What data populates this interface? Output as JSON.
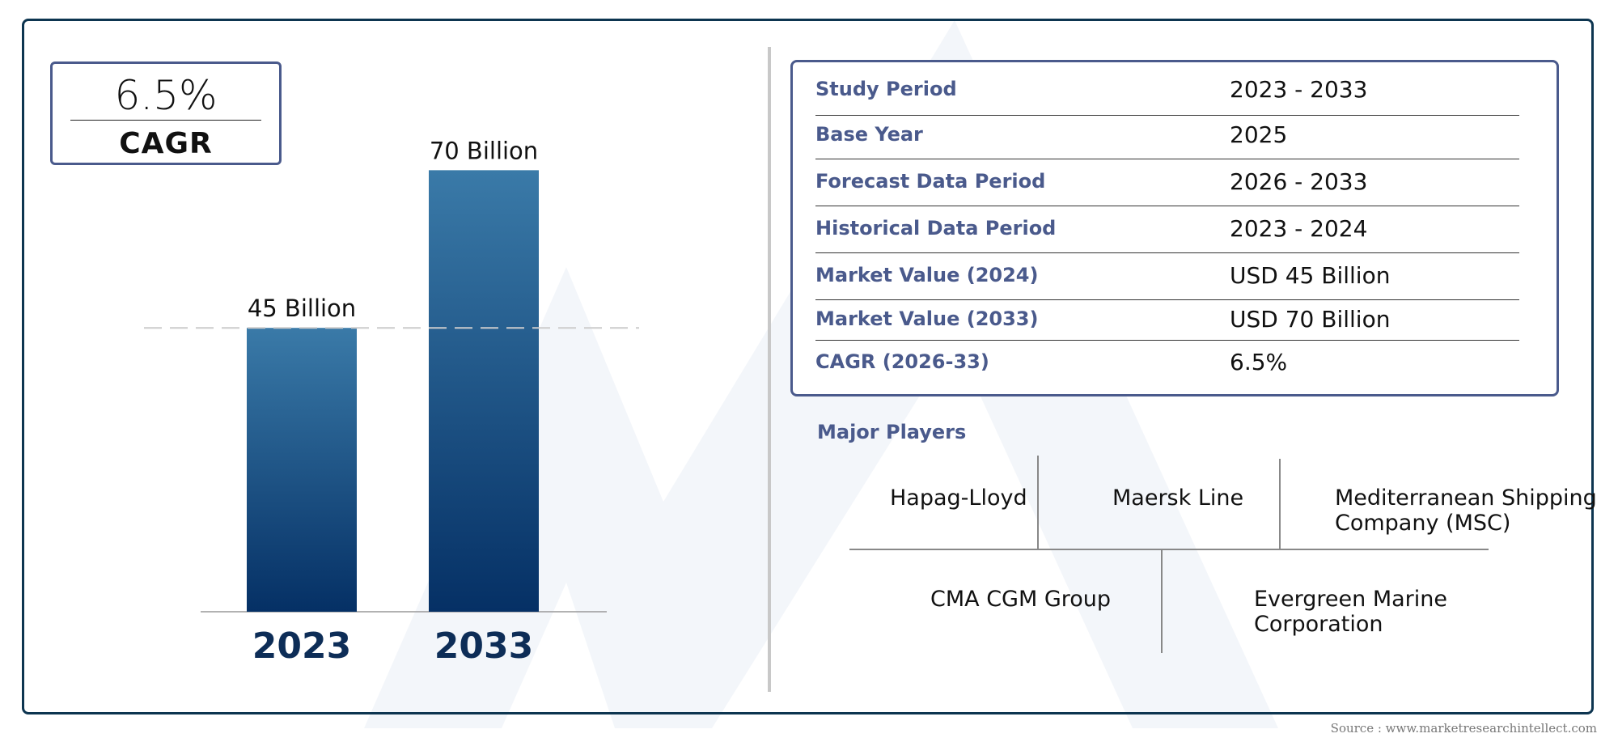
{
  "cagr_badge": {
    "value": "6.5%",
    "label": "CAGR"
  },
  "chart_data": {
    "type": "bar",
    "categories": [
      "2023",
      "2033"
    ],
    "values": [
      45,
      70
    ],
    "data_labels": [
      "45 Billion",
      "70 Billion"
    ],
    "title": "",
    "xlabel": "",
    "ylabel": "",
    "ylim": [
      0,
      78
    ],
    "reference_line": 45,
    "grid": false,
    "legend": "none",
    "colors": {
      "bar_top": "#3a7aa8",
      "bar_bottom": "#053065",
      "axis_label": "#0d2d57",
      "reference_line": "#cccccc"
    }
  },
  "info_table": [
    {
      "label": "Study Period",
      "value": "2023 - 2033"
    },
    {
      "label": "Base Year",
      "value": "2025"
    },
    {
      "label": "Forecast Data Period",
      "value": "2026 - 2033"
    },
    {
      "label": "Historical Data Period",
      "value": "2023 - 2024"
    },
    {
      "label": "Market Value (2024)",
      "value": "USD 45 Billion"
    },
    {
      "label": "Market Value (2033)",
      "value": "USD 70 Billion"
    },
    {
      "label": "CAGR (2026-33)",
      "value": "6.5%"
    }
  ],
  "players": {
    "title": "Major Players",
    "top_row": [
      {
        "line1": "Hapag-Lloyd",
        "line2": ""
      },
      {
        "line1": "Maersk Line",
        "line2": ""
      },
      {
        "line1": "Mediterranean Shipping",
        "line2": "Company (MSC)"
      }
    ],
    "bottom_row": [
      {
        "line1": "CMA CGM Group",
        "line2": ""
      },
      {
        "line1": "Evergreen Marine",
        "line2": "Corporation"
      }
    ]
  },
  "source": "Source : www.marketresearchintellect.com",
  "colors": {
    "accent": "#4a5a8c",
    "frame": "#0d3550"
  }
}
